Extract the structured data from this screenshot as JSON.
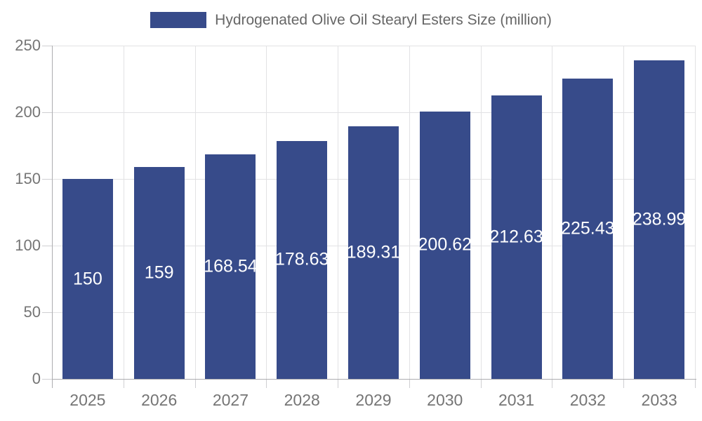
{
  "chart_data": {
    "type": "bar",
    "title": "",
    "legend": "Hydrogenated Olive Oil Stearyl Esters Size (million)",
    "legend_position": "top",
    "categories": [
      "2025",
      "2026",
      "2027",
      "2028",
      "2029",
      "2030",
      "2031",
      "2032",
      "2033"
    ],
    "values": [
      150,
      159,
      168.54,
      178.63,
      189.31,
      200.62,
      212.63,
      225.43,
      238.99
    ],
    "value_labels": [
      "150",
      "159",
      "168.54",
      "178.63",
      "189.31",
      "200.62",
      "212.63",
      "225.43",
      "238.99"
    ],
    "xlabel": "",
    "ylabel": "",
    "ylim": [
      0,
      250
    ],
    "yticks": [
      0,
      50,
      100,
      150,
      200,
      250
    ],
    "grid": true,
    "colors": {
      "bar": "#374b8a",
      "bar_value_text": "#ffffff",
      "axis_text": "#757575",
      "legend_text": "#666666",
      "gridline": "#e2e2e4",
      "axis_line": "#adadb0",
      "tick_line": "#cfcfd2"
    }
  }
}
